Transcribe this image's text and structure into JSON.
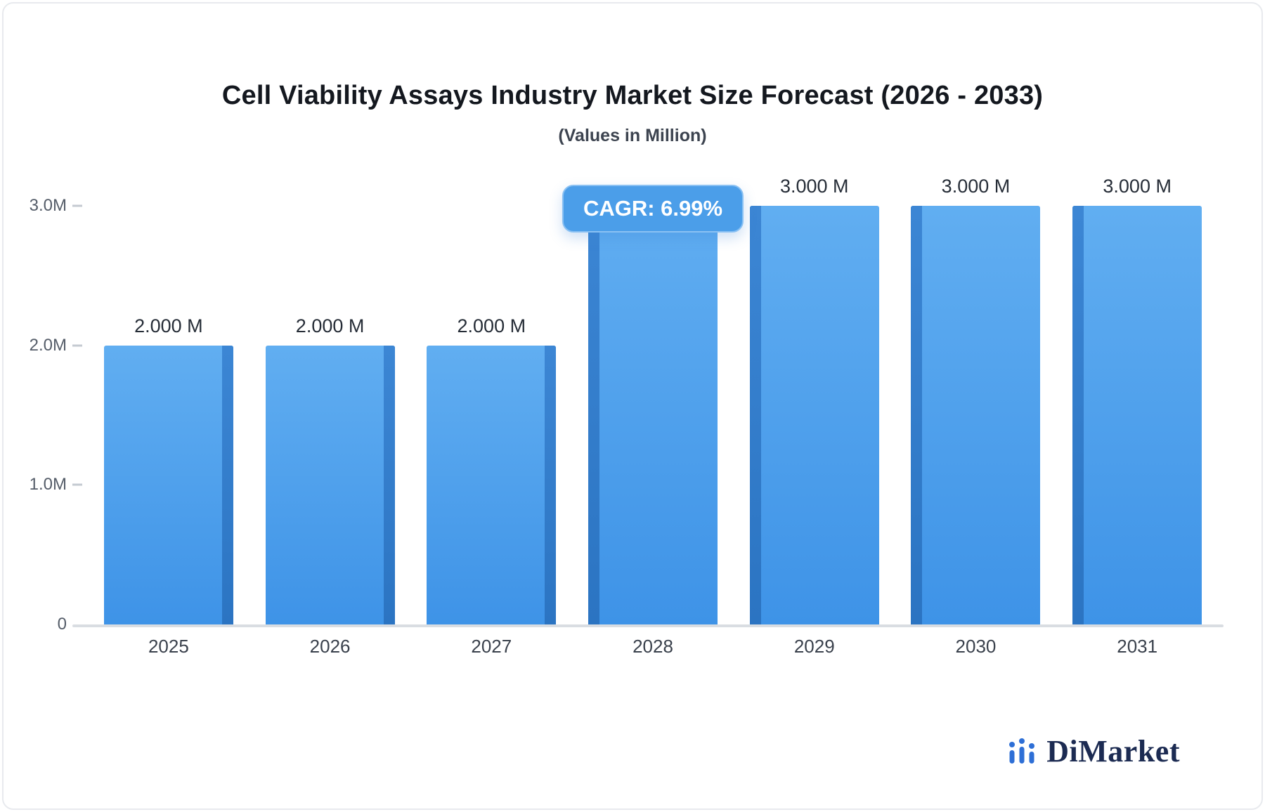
{
  "title": "Cell Viability Assays Industry Market Size Forecast (2026 - 2033)",
  "subtitle": "(Values in Million)",
  "badge": {
    "label": "CAGR: 6.99%",
    "color": "#4b9ee9"
  },
  "logo": {
    "text": "DiMarket",
    "icon_color": "#2e6fd6"
  },
  "chart_data": {
    "type": "bar",
    "categories": [
      "2025",
      "2026",
      "2027",
      "2028",
      "2029",
      "2030",
      "2031"
    ],
    "values": [
      2.0,
      2.0,
      2.0,
      3.0,
      3.0,
      3.0,
      3.0
    ],
    "value_labels": [
      "2.000 M",
      "2.000 M",
      "2.000 M",
      "",
      "3.000 M",
      "3.000 M",
      "3.000 M"
    ],
    "unit": "Million",
    "title": "Cell Viability Assays Industry Market Size Forecast (2026 - 2033)",
    "xlabel": "",
    "ylabel": "",
    "ylim": [
      0,
      3.0
    ],
    "yticks": [
      {
        "value": 0,
        "label": "0"
      },
      {
        "value": 1,
        "label": "1.0M"
      },
      {
        "value": 2,
        "label": "2.0M"
      },
      {
        "value": 3,
        "label": "3.0M"
      }
    ],
    "grid": false,
    "legend": false,
    "bar_color_top": "#61aef1",
    "bar_color_bottom": "#3e93e7",
    "bar_shadow_color": "#2b74c2",
    "shadow_side": [
      "right",
      "right",
      "right",
      "left",
      "left",
      "left",
      "left"
    ],
    "badge_anchor_category": "2028"
  }
}
